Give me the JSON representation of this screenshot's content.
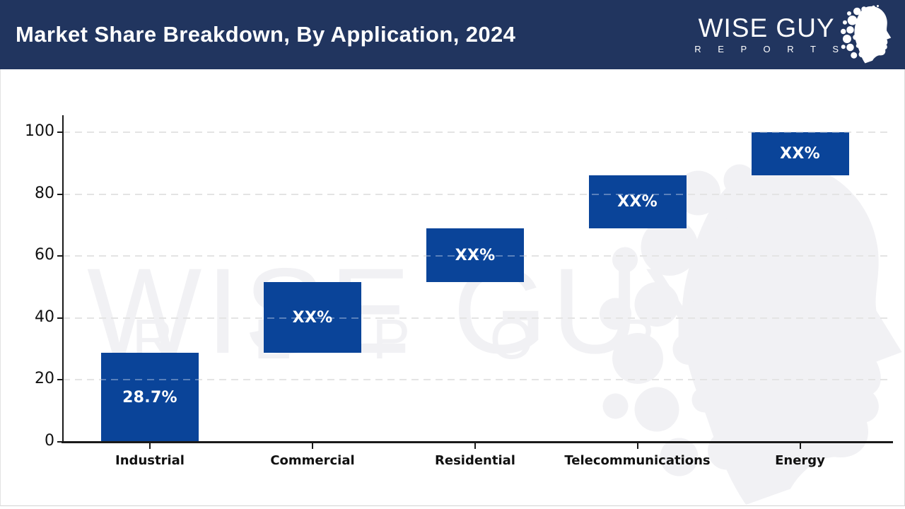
{
  "header": {
    "title": "Market Share Breakdown, By Application, 2024",
    "logo": {
      "name": "WISE GUY",
      "tagline": "R E P O R T S"
    }
  },
  "watermark": {
    "line1": "WISE GUY",
    "line2": "R E P O R T S"
  },
  "colors": {
    "header_bg": "#21355f",
    "bar": "#0a4499",
    "grid": "#d7d7d7",
    "axis": "#1a1a1a",
    "text": "#111111",
    "bar_label": "#ffffff",
    "watermark": "#f1f1f4"
  },
  "chart_data": {
    "type": "bar",
    "subtype": "waterfall",
    "title": "Market Share Breakdown, By Application, 2024",
    "xlabel": "",
    "ylabel": "",
    "ylim": [
      0,
      100
    ],
    "yticks": [
      0,
      20,
      40,
      60,
      80,
      100
    ],
    "grid": "horizontal-dashed",
    "legend": "none",
    "categories": [
      "Industrial",
      "Commercial",
      "Residential",
      "Telecommunications",
      "Energy"
    ],
    "segments": [
      {
        "category": "Industrial",
        "start": 0,
        "end": 28.7,
        "label": "28.7%"
      },
      {
        "category": "Commercial",
        "start": 28.7,
        "end": 51.5,
        "label": "XX%"
      },
      {
        "category": "Residential",
        "start": 51.5,
        "end": 69,
        "label": "XX%"
      },
      {
        "category": "Telecommunications",
        "start": 69,
        "end": 86,
        "label": "XX%"
      },
      {
        "category": "Energy",
        "start": 86,
        "end": 100,
        "label": "XX%"
      }
    ]
  }
}
